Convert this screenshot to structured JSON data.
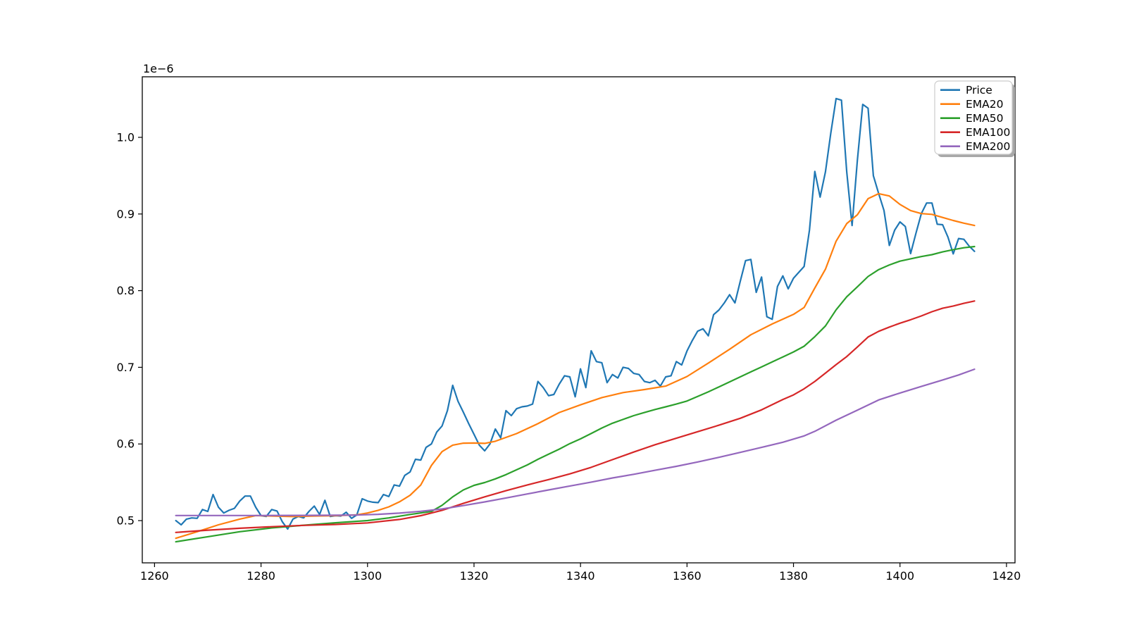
{
  "figure": {
    "kind": "line-chart-figure",
    "background_color": "#ffffff",
    "spine_color": "#000000"
  },
  "axes": {
    "y_offset_label": "1e−6",
    "x_ticks": [
      1260,
      1280,
      1300,
      1320,
      1340,
      1360,
      1380,
      1400,
      1420
    ],
    "y_ticks": [
      0.5,
      0.6,
      0.7,
      0.8,
      0.9,
      1.0
    ],
    "x_range": [
      1257.7,
      1421.6
    ],
    "y_range": [
      0.4449,
      1.079
    ],
    "grid": false,
    "x_label": "",
    "y_label": ""
  },
  "legend": {
    "position": "upper right",
    "shadow": true,
    "entries": [
      "Price",
      "EMA20",
      "EMA50",
      "EMA100",
      "EMA200"
    ]
  },
  "chart_data": {
    "type": "line",
    "title": "",
    "xlabel": "",
    "ylabel": "",
    "unit_note": "y values are in units of 1e-6 (axis offset label 1e−6)",
    "xlim": [
      1257.7,
      1421.6
    ],
    "ylim": [
      0.4449,
      1.079
    ],
    "series": [
      {
        "name": "Price",
        "color": "#1f77b4",
        "x_start": 1264,
        "x_step": 1,
        "values": [
          0.5,
          0.4945,
          0.502,
          0.5035,
          0.503,
          0.5145,
          0.512,
          0.534,
          0.5175,
          0.51,
          0.5135,
          0.516,
          0.5255,
          0.532,
          0.532,
          0.5175,
          0.5065,
          0.5055,
          0.5145,
          0.5125,
          0.4985,
          0.489,
          0.502,
          0.5055,
          0.5035,
          0.512,
          0.519,
          0.508,
          0.5265,
          0.5055,
          0.5065,
          0.506,
          0.511,
          0.503,
          0.5075,
          0.5285,
          0.5255,
          0.524,
          0.5235,
          0.534,
          0.5315,
          0.5465,
          0.545,
          0.559,
          0.5635,
          0.58,
          0.579,
          0.5955,
          0.6,
          0.6155,
          0.6235,
          0.6435,
          0.6765,
          0.6555,
          0.6415,
          0.6265,
          0.6125,
          0.5985,
          0.591,
          0.6,
          0.6195,
          0.608,
          0.6435,
          0.637,
          0.646,
          0.6485,
          0.6495,
          0.652,
          0.6815,
          0.6735,
          0.663,
          0.6645,
          0.678,
          0.689,
          0.6875,
          0.6615,
          0.698,
          0.6735,
          0.7215,
          0.7075,
          0.706,
          0.68,
          0.6905,
          0.686,
          0.7,
          0.6985,
          0.692,
          0.6905,
          0.6815,
          0.68,
          0.683,
          0.6755,
          0.6875,
          0.689,
          0.7075,
          0.703,
          0.7212,
          0.735,
          0.7472,
          0.7503,
          0.7411,
          0.7687,
          0.7748,
          0.784,
          0.7948,
          0.784,
          0.812,
          0.8392,
          0.8407,
          0.7978,
          0.8177,
          0.766,
          0.7626,
          0.8055,
          0.8193,
          0.8024,
          0.8162,
          0.824,
          0.8315,
          0.879,
          0.9556,
          0.922,
          0.955,
          1.005,
          1.0506,
          1.0485,
          0.955,
          0.885,
          0.97,
          1.043,
          1.038,
          0.95,
          0.9265,
          0.9046,
          0.859,
          0.879,
          0.8897,
          0.8836,
          0.8483,
          0.875,
          0.9004,
          0.9143,
          0.9143,
          0.8867,
          0.886,
          0.8698,
          0.848,
          0.868,
          0.867,
          0.858,
          0.8513
        ]
      },
      {
        "name": "EMA20",
        "color": "#ff7f0e",
        "points": [
          [
            1264,
            0.477
          ],
          [
            1268,
            0.4855
          ],
          [
            1272,
            0.4945
          ],
          [
            1276,
            0.502
          ],
          [
            1279,
            0.5066
          ],
          [
            1282,
            0.506
          ],
          [
            1286,
            0.5053
          ],
          [
            1290,
            0.506
          ],
          [
            1294,
            0.5065
          ],
          [
            1298,
            0.5075
          ],
          [
            1300,
            0.51
          ],
          [
            1302,
            0.5135
          ],
          [
            1304,
            0.518
          ],
          [
            1306,
            0.5245
          ],
          [
            1308,
            0.533
          ],
          [
            1310,
            0.5465
          ],
          [
            1312,
            0.572
          ],
          [
            1314,
            0.59
          ],
          [
            1316,
            0.5985
          ],
          [
            1318,
            0.601
          ],
          [
            1320,
            0.6012
          ],
          [
            1322,
            0.6008
          ],
          [
            1324,
            0.6035
          ],
          [
            1328,
            0.6135
          ],
          [
            1332,
            0.6265
          ],
          [
            1336,
            0.641
          ],
          [
            1340,
            0.651
          ],
          [
            1344,
            0.6605
          ],
          [
            1348,
            0.667
          ],
          [
            1352,
            0.671
          ],
          [
            1356,
            0.6755
          ],
          [
            1360,
            0.688
          ],
          [
            1364,
            0.7055
          ],
          [
            1368,
            0.7235
          ],
          [
            1372,
            0.7425
          ],
          [
            1376,
            0.7565
          ],
          [
            1380,
            0.769
          ],
          [
            1382,
            0.778
          ],
          [
            1384,
            0.8035
          ],
          [
            1386,
            0.828
          ],
          [
            1388,
            0.8645
          ],
          [
            1390,
            0.8875
          ],
          [
            1392,
            0.899
          ],
          [
            1394,
            0.92
          ],
          [
            1396,
            0.9265
          ],
          [
            1398,
            0.9235
          ],
          [
            1400,
            0.9125
          ],
          [
            1402,
            0.9045
          ],
          [
            1404,
            0.9005
          ],
          [
            1406,
            0.8995
          ],
          [
            1408,
            0.8955
          ],
          [
            1410,
            0.8915
          ],
          [
            1412,
            0.888
          ],
          [
            1414,
            0.885
          ]
        ]
      },
      {
        "name": "EMA50",
        "color": "#2ca02c",
        "points": [
          [
            1264,
            0.4724
          ],
          [
            1270,
            0.479
          ],
          [
            1276,
            0.4855
          ],
          [
            1282,
            0.4905
          ],
          [
            1288,
            0.494
          ],
          [
            1294,
            0.4972
          ],
          [
            1300,
            0.5
          ],
          [
            1304,
            0.5035
          ],
          [
            1308,
            0.508
          ],
          [
            1312,
            0.512
          ],
          [
            1314,
            0.52
          ],
          [
            1316,
            0.531
          ],
          [
            1318,
            0.54
          ],
          [
            1320,
            0.546
          ],
          [
            1322,
            0.5497
          ],
          [
            1324,
            0.5544
          ],
          [
            1326,
            0.56
          ],
          [
            1328,
            0.5663
          ],
          [
            1330,
            0.5726
          ],
          [
            1332,
            0.58
          ],
          [
            1334,
            0.5867
          ],
          [
            1336,
            0.5932
          ],
          [
            1338,
            0.6005
          ],
          [
            1340,
            0.6066
          ],
          [
            1342,
            0.6136
          ],
          [
            1344,
            0.6208
          ],
          [
            1346,
            0.627
          ],
          [
            1348,
            0.632
          ],
          [
            1350,
            0.637
          ],
          [
            1352,
            0.641
          ],
          [
            1354,
            0.645
          ],
          [
            1356,
            0.6485
          ],
          [
            1358,
            0.652
          ],
          [
            1360,
            0.656
          ],
          [
            1362,
            0.662
          ],
          [
            1364,
            0.668
          ],
          [
            1366,
            0.6745
          ],
          [
            1368,
            0.681
          ],
          [
            1370,
            0.6875
          ],
          [
            1372,
            0.694
          ],
          [
            1374,
            0.7005
          ],
          [
            1376,
            0.707
          ],
          [
            1378,
            0.7135
          ],
          [
            1380,
            0.72
          ],
          [
            1382,
            0.7275
          ],
          [
            1384,
            0.74
          ],
          [
            1386,
            0.754
          ],
          [
            1388,
            0.775
          ],
          [
            1390,
            0.792
          ],
          [
            1392,
            0.805
          ],
          [
            1394,
            0.8185
          ],
          [
            1396,
            0.8275
          ],
          [
            1398,
            0.8335
          ],
          [
            1400,
            0.8385
          ],
          [
            1402,
            0.8415
          ],
          [
            1404,
            0.8445
          ],
          [
            1406,
            0.847
          ],
          [
            1408,
            0.8505
          ],
          [
            1410,
            0.8535
          ],
          [
            1412,
            0.856
          ],
          [
            1414,
            0.8575
          ]
        ]
      },
      {
        "name": "EMA100",
        "color": "#d62728",
        "points": [
          [
            1264,
            0.4846
          ],
          [
            1270,
            0.4875
          ],
          [
            1276,
            0.49
          ],
          [
            1282,
            0.492
          ],
          [
            1288,
            0.4938
          ],
          [
            1294,
            0.495
          ],
          [
            1300,
            0.497
          ],
          [
            1306,
            0.5015
          ],
          [
            1310,
            0.5065
          ],
          [
            1314,
            0.5135
          ],
          [
            1318,
            0.5225
          ],
          [
            1322,
            0.531
          ],
          [
            1326,
            0.539
          ],
          [
            1330,
            0.5465
          ],
          [
            1334,
            0.5535
          ],
          [
            1338,
            0.561
          ],
          [
            1342,
            0.5695
          ],
          [
            1346,
            0.5795
          ],
          [
            1350,
            0.5895
          ],
          [
            1354,
            0.599
          ],
          [
            1358,
            0.6075
          ],
          [
            1362,
            0.616
          ],
          [
            1366,
            0.6245
          ],
          [
            1370,
            0.6335
          ],
          [
            1374,
            0.6445
          ],
          [
            1378,
            0.658
          ],
          [
            1380,
            0.664
          ],
          [
            1382,
            0.672
          ],
          [
            1384,
            0.6815
          ],
          [
            1386,
            0.6925
          ],
          [
            1388,
            0.7035
          ],
          [
            1390,
            0.714
          ],
          [
            1392,
            0.7265
          ],
          [
            1394,
            0.7395
          ],
          [
            1396,
            0.747
          ],
          [
            1398,
            0.7525
          ],
          [
            1400,
            0.7575
          ],
          [
            1402,
            0.762
          ],
          [
            1404,
            0.767
          ],
          [
            1406,
            0.7725
          ],
          [
            1408,
            0.777
          ],
          [
            1410,
            0.78
          ],
          [
            1412,
            0.7835
          ],
          [
            1414,
            0.7865
          ]
        ]
      },
      {
        "name": "EMA200",
        "color": "#9467bd",
        "points": [
          [
            1264,
            0.5067
          ],
          [
            1272,
            0.5067
          ],
          [
            1280,
            0.5067
          ],
          [
            1288,
            0.5068
          ],
          [
            1294,
            0.507
          ],
          [
            1298,
            0.5073
          ],
          [
            1302,
            0.5082
          ],
          [
            1306,
            0.5098
          ],
          [
            1310,
            0.5122
          ],
          [
            1314,
            0.5152
          ],
          [
            1318,
            0.5196
          ],
          [
            1322,
            0.5244
          ],
          [
            1326,
            0.5295
          ],
          [
            1330,
            0.5348
          ],
          [
            1334,
            0.54
          ],
          [
            1338,
            0.5452
          ],
          [
            1342,
            0.5502
          ],
          [
            1346,
            0.5556
          ],
          [
            1350,
            0.5604
          ],
          [
            1354,
            0.5657
          ],
          [
            1358,
            0.5708
          ],
          [
            1362,
            0.5765
          ],
          [
            1366,
            0.5826
          ],
          [
            1370,
            0.589
          ],
          [
            1374,
            0.5955
          ],
          [
            1378,
            0.6022
          ],
          [
            1382,
            0.6105
          ],
          [
            1384,
            0.6165
          ],
          [
            1388,
            0.631
          ],
          [
            1392,
            0.644
          ],
          [
            1396,
            0.6575
          ],
          [
            1400,
            0.6665
          ],
          [
            1404,
            0.675
          ],
          [
            1408,
            0.6835
          ],
          [
            1411,
            0.69
          ],
          [
            1414,
            0.6975
          ]
        ]
      }
    ]
  }
}
